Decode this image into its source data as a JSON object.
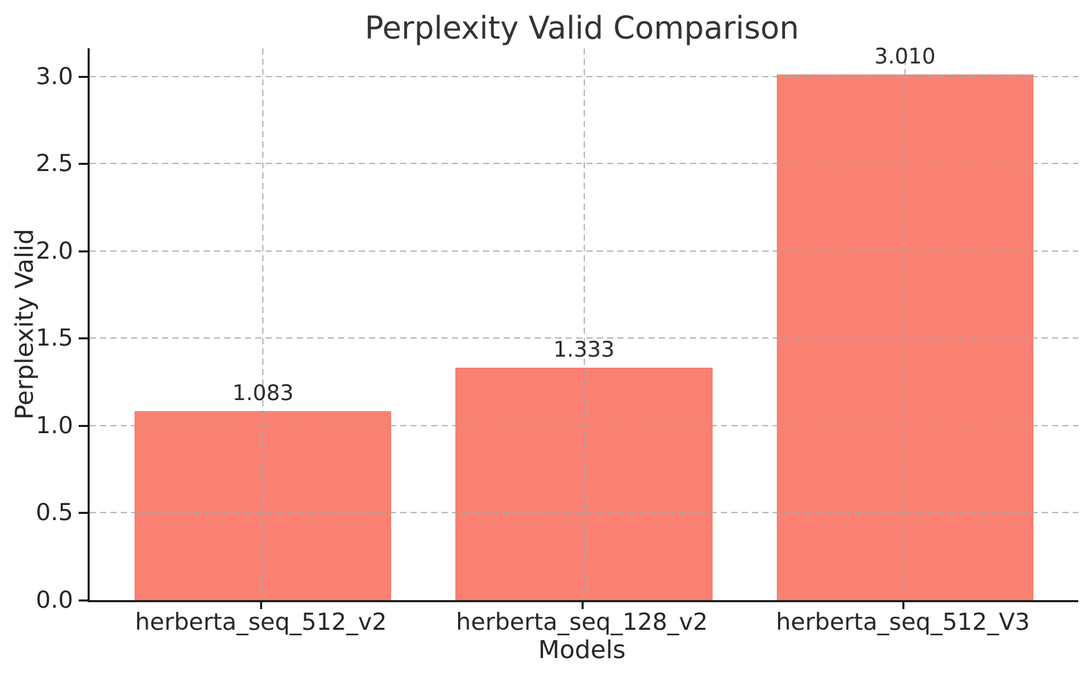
{
  "chart_data": {
    "type": "bar",
    "title": "Perplexity Valid Comparison",
    "xlabel": "Models",
    "ylabel": "Perplexity Valid",
    "categories": [
      "herberta_seq_512_v2",
      "herberta_seq_128_v2",
      "herberta_seq_512_V3"
    ],
    "values": [
      1.083,
      1.333,
      3.01
    ],
    "bar_labels": [
      "1.083",
      "1.333",
      "3.010"
    ],
    "ytick_labels": [
      "0.0",
      "0.5",
      "1.0",
      "1.5",
      "2.0",
      "2.5",
      "3.0"
    ],
    "yticks": [
      0.0,
      0.5,
      1.0,
      1.5,
      2.0,
      2.5,
      3.0
    ],
    "ylim": [
      0,
      3.1605
    ],
    "grid": true,
    "grid_style": "dashed",
    "grid_above_bars": true,
    "legend": null,
    "colors": {
      "bar": "#fa8072",
      "grid": "#c8c8c8",
      "spine": "#1c1c1c",
      "text": "#262626"
    }
  }
}
